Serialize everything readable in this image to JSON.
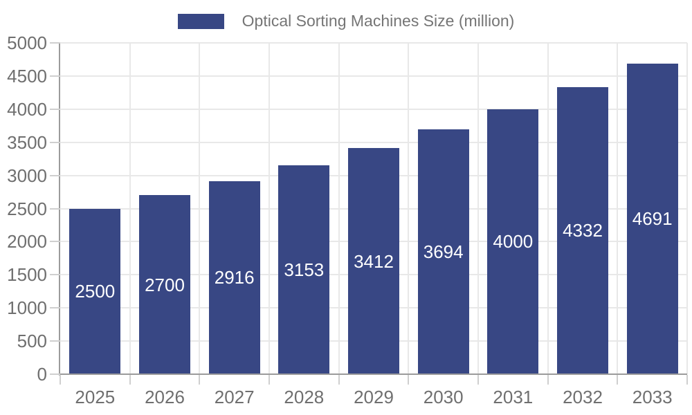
{
  "legend": {
    "label": "Optical Sorting Machines Size (million)"
  },
  "chart_data": {
    "type": "bar",
    "title": "Optical Sorting Machines Size (million)",
    "categories": [
      "2025",
      "2026",
      "2027",
      "2028",
      "2029",
      "2030",
      "2031",
      "2032",
      "2033"
    ],
    "series": [
      {
        "name": "Optical Sorting Machines Size (million)",
        "values": [
          2500,
          2700,
          2916,
          3153,
          3412,
          3694,
          4000,
          4332,
          4691
        ]
      }
    ],
    "xlabel": "",
    "ylabel": "",
    "ylim": [
      0,
      5000
    ],
    "ytick_step": 500,
    "grid": true,
    "legend_position": "top",
    "value_label_position": "inside-center"
  },
  "colors": {
    "background": "#ffffff",
    "bar": "#384784",
    "bar_value_label": "#ffffff",
    "axis_line": "#9b9b9b",
    "grid_line": "#e8e8e8",
    "tick_line": "#cfcfcf",
    "tick_label": "#6f6f6f",
    "legend_label": "#757575"
  }
}
